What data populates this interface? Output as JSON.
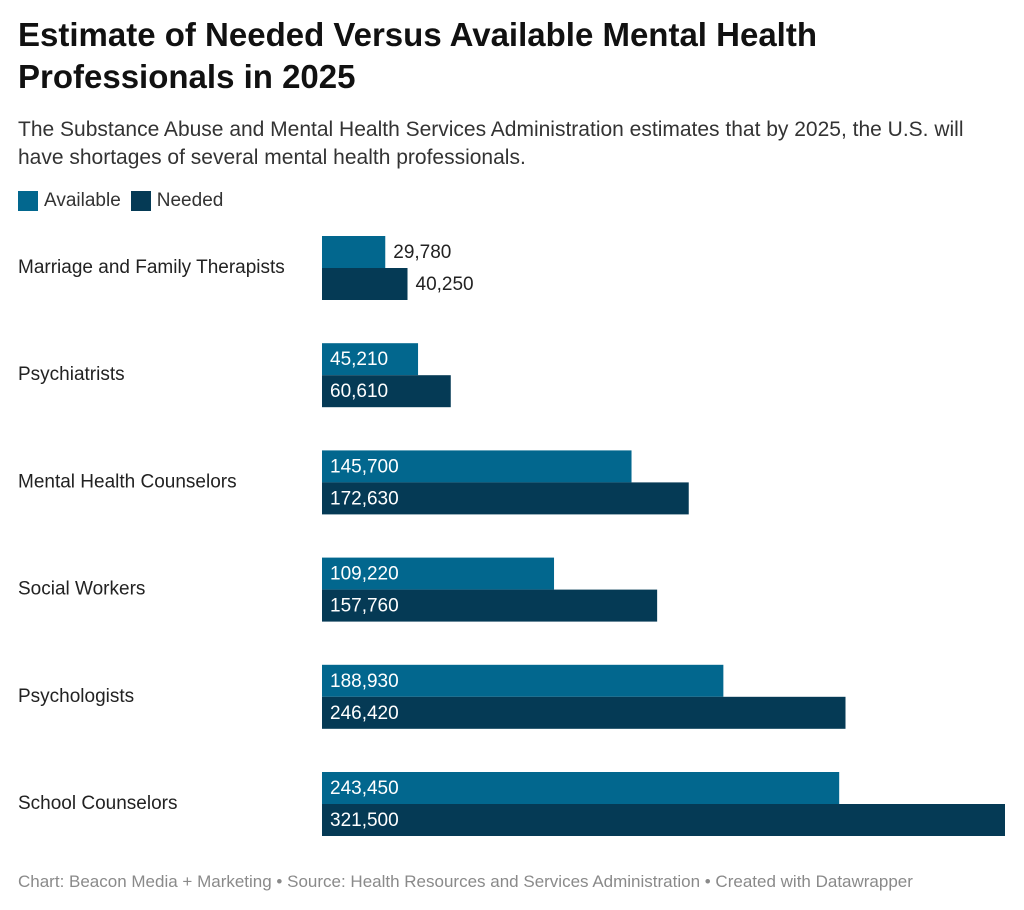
{
  "title": "Estimate of Needed Versus Available Mental Health Professionals in 2025",
  "subtitle": "The Substance Abuse and Mental Health Services Administration estimates that by 2025, the U.S. will have shortages of several mental health professionals.",
  "legend": {
    "available": "Available",
    "needed": "Needed"
  },
  "colors": {
    "available": "#02678e",
    "needed": "#053a55"
  },
  "footer": "Chart: Beacon Media + Marketing • Source: Health Resources and Services Administration • Created with Datawrapper",
  "chart_data": {
    "type": "bar",
    "orientation": "horizontal",
    "categories": [
      "Marriage and Family Therapists",
      "Psychiatrists",
      "Mental Health Counselors",
      "Social Workers",
      "Psychologists",
      "School Counselors"
    ],
    "series": [
      {
        "name": "Available",
        "values": [
          29780,
          45210,
          145700,
          109220,
          188930,
          243450
        ],
        "labels": [
          "29,780",
          "45,210",
          "145,700",
          "109,220",
          "188,930",
          "243,450"
        ]
      },
      {
        "name": "Needed",
        "values": [
          40250,
          60610,
          172630,
          157760,
          246420,
          321500
        ],
        "labels": [
          "40,250",
          "60,610",
          "172,630",
          "157,760",
          "246,420",
          "321,500"
        ]
      }
    ],
    "xlim": [
      0,
      321500
    ],
    "grid": false,
    "legend_position": "top-left"
  }
}
